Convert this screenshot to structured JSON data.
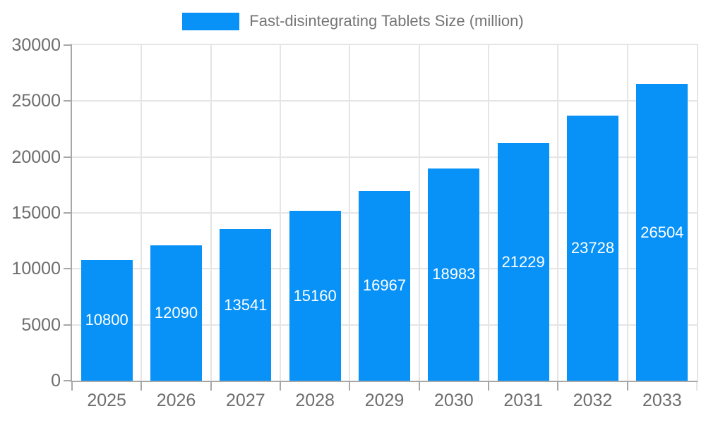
{
  "legend": {
    "label": "Fast-disintegrating Tablets Size (million)",
    "position": "top"
  },
  "colors": {
    "bar": "#0892f8",
    "axis": "#a7a7a7",
    "grid": "#e5e5e5",
    "tick_label": "#6e6e6e",
    "legend_text": "#757575",
    "value_label": "#ffffff",
    "background": "#ffffff"
  },
  "chart_data": {
    "type": "bar",
    "title": "Fast-disintegrating Tablets Size (million)",
    "categories": [
      "2025",
      "2026",
      "2027",
      "2028",
      "2029",
      "2030",
      "2031",
      "2032",
      "2033"
    ],
    "series": [
      {
        "name": "Fast-disintegrating Tablets Size (million)",
        "values": [
          10800,
          12090,
          13541,
          15160,
          16967,
          18983,
          21229,
          23728,
          26504
        ]
      }
    ],
    "xlabel": "",
    "ylabel": "",
    "ylim": [
      0,
      30000
    ],
    "yticks": [
      0,
      5000,
      10000,
      15000,
      20000,
      25000,
      30000
    ],
    "grid": true,
    "legend_position": "top",
    "value_label_position": "inside-center"
  }
}
